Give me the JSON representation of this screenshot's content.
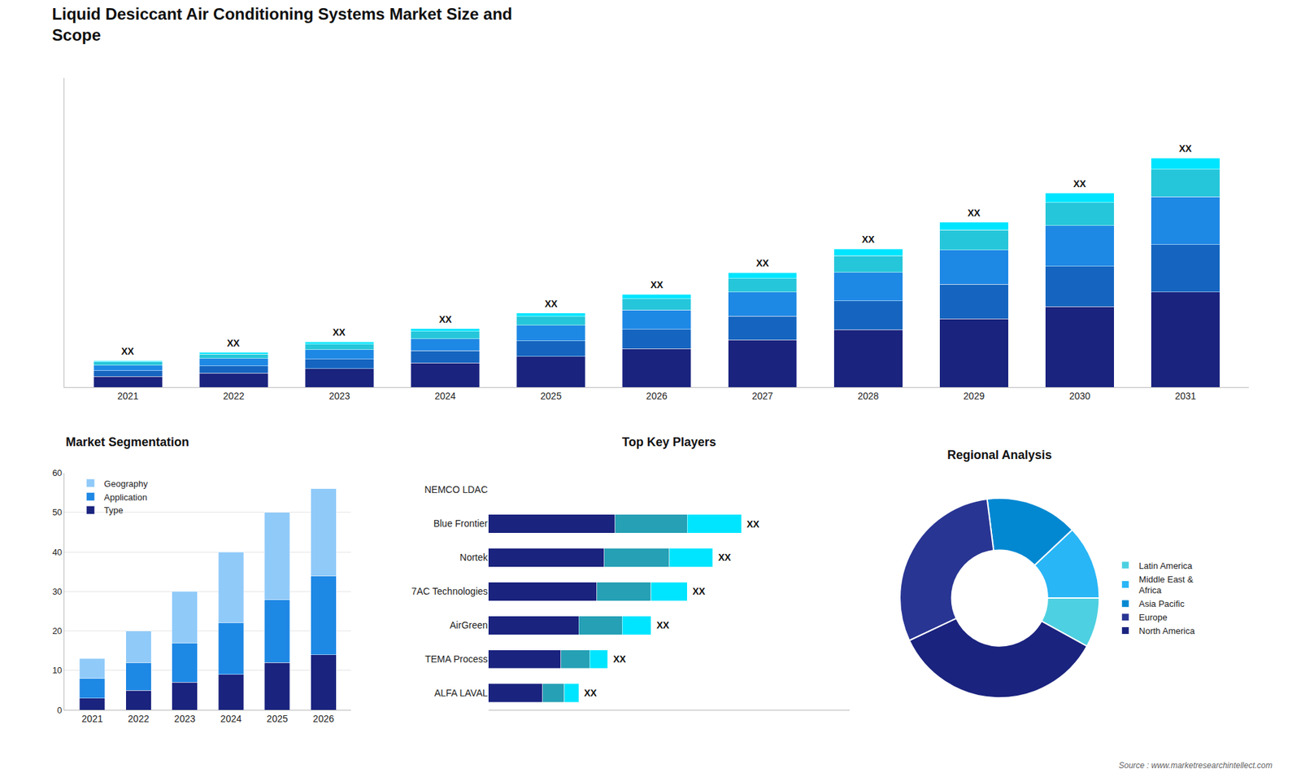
{
  "chart_data": [
    {
      "type": "bar",
      "title": "Liquid Desiccant Air Conditioning Systems Market Size and\nScope",
      "stacked": true,
      "categories": [
        "2021",
        "2022",
        "2023",
        "2024",
        "2025",
        "2026",
        "2027",
        "2028",
        "2029",
        "2030",
        "2031"
      ],
      "series": [
        {
          "color": "#1a237e",
          "values": [
            1.0,
            1.3,
            1.7,
            2.2,
            2.8,
            3.5,
            4.3,
            5.2,
            6.2,
            7.3,
            8.6
          ]
        },
        {
          "color": "#1565c0",
          "values": [
            0.5,
            0.65,
            0.85,
            1.1,
            1.4,
            1.75,
            2.15,
            2.6,
            3.1,
            3.65,
            4.3
          ]
        },
        {
          "color": "#1e88e5",
          "values": [
            0.5,
            0.65,
            0.85,
            1.1,
            1.4,
            1.75,
            2.15,
            2.6,
            3.1,
            3.65,
            4.3
          ]
        },
        {
          "color": "#26c6da",
          "values": [
            0.3,
            0.4,
            0.5,
            0.65,
            0.8,
            1.0,
            1.25,
            1.5,
            1.8,
            2.1,
            2.5
          ]
        },
        {
          "color": "#00e5ff",
          "values": [
            0.1,
            0.15,
            0.2,
            0.25,
            0.3,
            0.4,
            0.5,
            0.6,
            0.72,
            0.84,
            1.0
          ]
        }
      ],
      "ylim": [
        0,
        27.945
      ],
      "tick_labels": "x",
      "grid": false,
      "annotations": [
        {
          "category": "2021",
          "text": "XX"
        },
        {
          "category": "2022",
          "text": "XX"
        },
        {
          "category": "2023",
          "text": "XX"
        },
        {
          "category": "2024",
          "text": "XX"
        },
        {
          "category": "2025",
          "text": "XX"
        },
        {
          "category": "2026",
          "text": "XX"
        },
        {
          "category": "2027",
          "text": "XX"
        },
        {
          "category": "2028",
          "text": "XX"
        },
        {
          "category": "2029",
          "text": "XX"
        },
        {
          "category": "2030",
          "text": "XX"
        },
        {
          "category": "2031",
          "text": "XX"
        },
        {
          "text": "Source : www.marketresearchintellect.com"
        }
      ]
    },
    {
      "type": "bar",
      "title": "Market Segmentation",
      "stacked": true,
      "categories": [
        "2021",
        "2022",
        "2023",
        "2024",
        "2025",
        "2026"
      ],
      "series": [
        {
          "name": "Type",
          "color": "#1a237e",
          "values": [
            3,
            5,
            7,
            9,
            12,
            14
          ]
        },
        {
          "name": "Application",
          "color": "#1e88e5",
          "values": [
            5,
            7,
            10,
            13,
            16,
            20
          ]
        },
        {
          "name": "Geography",
          "color": "#90caf9",
          "values": [
            5,
            8,
            13,
            18,
            22,
            22
          ]
        }
      ],
      "ylim": [
        0,
        60
      ],
      "yticks": [
        0,
        10,
        20,
        30,
        40,
        50,
        60
      ],
      "grid": true,
      "legend": "upper left"
    },
    {
      "type": "bar",
      "title": "Top Key Players",
      "orientation": "horizontal",
      "stacked": true,
      "categories": [
        "NEMCO LDAC",
        "Blue Frontier",
        "Nortek",
        "7AC Technologies",
        "AirGreen",
        "TEMA Process",
        "ALFA LAVAL"
      ],
      "series": [
        {
          "color": "#1a237e",
          "values": [
            0,
            3.5,
            3.2,
            3.0,
            2.5,
            2.0,
            1.5
          ]
        },
        {
          "color": "#26a0b5",
          "values": [
            0,
            2.0,
            1.8,
            1.5,
            1.2,
            0.8,
            0.6
          ]
        },
        {
          "color": "#00e5ff",
          "values": [
            0,
            1.5,
            1.2,
            1.0,
            0.8,
            0.5,
            0.4
          ]
        }
      ],
      "xlim": [
        0,
        10
      ],
      "tick_labels": "y",
      "grid": false,
      "annotations": [
        {
          "category": "Blue Frontier",
          "text": "XX"
        },
        {
          "category": "Nortek",
          "text": "XX"
        },
        {
          "category": "7AC Technologies",
          "text": "XX"
        },
        {
          "category": "AirGreen",
          "text": "XX"
        },
        {
          "category": "TEMA Process",
          "text": "XX"
        },
        {
          "category": "ALFA LAVAL",
          "text": "XX"
        }
      ]
    },
    {
      "type": "pie",
      "title": "Regional Analysis",
      "categories": [
        "Latin America",
        "Middle East &\nAfrica",
        "Asia Pacific",
        "Europe",
        "North America"
      ],
      "values": [
        8,
        12,
        15,
        30,
        35
      ],
      "colors": [
        "#4dd0e1",
        "#29b6f6",
        "#0288d1",
        "#283593",
        "#1a237e"
      ],
      "legend": "right"
    }
  ]
}
